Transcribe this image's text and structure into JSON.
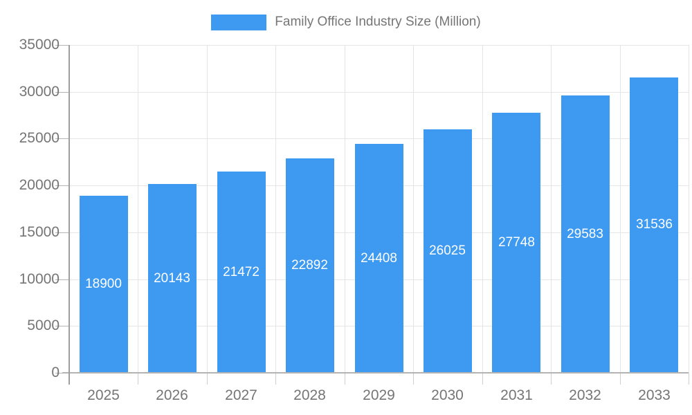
{
  "legend": {
    "label": "Family Office Industry Size (Million)",
    "swatch_color": "#3d9af0"
  },
  "chart_data": {
    "type": "bar",
    "title": "Family Office Industry Size (Million)",
    "series_name": "Family Office Industry Size (Million)",
    "categories": [
      "2025",
      "2026",
      "2027",
      "2028",
      "2029",
      "2030",
      "2031",
      "2032",
      "2033"
    ],
    "values": [
      18900,
      20143,
      21472,
      22892,
      24408,
      26025,
      27748,
      29583,
      31536
    ],
    "bar_labels": [
      "18900",
      "20143",
      "21472",
      "22892",
      "24408",
      "26025",
      "27748",
      "29583",
      "31536"
    ],
    "xlabel": "",
    "ylabel": "",
    "ylim": [
      0,
      35000
    ],
    "yticks": [
      0,
      5000,
      10000,
      15000,
      20000,
      25000,
      30000,
      35000
    ],
    "grid": true,
    "legend_position": "top-center",
    "colors": {
      "bar": "#3d9af0",
      "bar_value_text": "#ffffff",
      "axis_text": "#757575",
      "y_axis_line": "#9e9e9e",
      "baseline": "#b3b3b3",
      "gridline": "#e6e6e6"
    }
  }
}
